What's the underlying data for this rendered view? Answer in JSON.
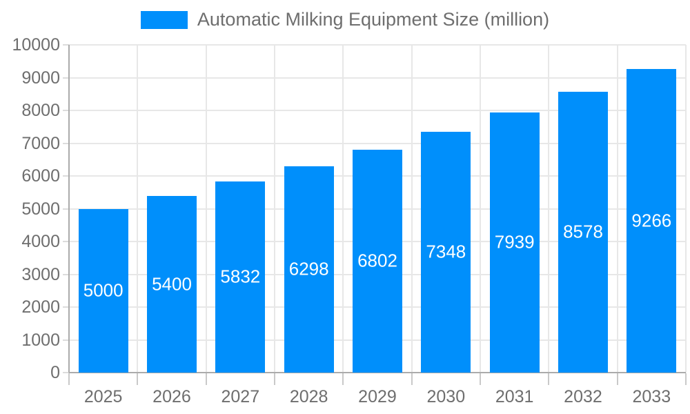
{
  "legend": {
    "label": "Automatic Milking Equipment Size (million)",
    "swatch_color": "#008FFB"
  },
  "chart_data": {
    "type": "bar",
    "title": "Automatic Milking Equipment Size (million)",
    "legend_position": "top",
    "categories": [
      "2025",
      "2026",
      "2027",
      "2028",
      "2029",
      "2030",
      "2031",
      "2032",
      "2033"
    ],
    "values": [
      5000,
      5400,
      5832,
      6298,
      6802,
      7348,
      7939,
      8578,
      9266
    ],
    "bar_labels": [
      "5000",
      "5400",
      "5832",
      "6298",
      "6802",
      "7348",
      "7939",
      "8578",
      "9266"
    ],
    "series_name": "Automatic Milking Equipment Size (million)",
    "xlabel": "",
    "ylabel": "",
    "ylim": [
      0,
      10000
    ],
    "y_tick_step": 1000,
    "y_tick_labels": [
      "0",
      "1000",
      "2000",
      "3000",
      "4000",
      "5000",
      "6000",
      "7000",
      "8000",
      "9000",
      "10000"
    ],
    "grid": true,
    "colors": {
      "bar": "#008FFB",
      "bar_label": "#FFFFFF",
      "axis_label": "#6E6E6E",
      "gridline": "#E7E7E7",
      "axis_line": "#ABABAB",
      "x_tick": "#C9C9C9",
      "y_tick": "#DCDCDC",
      "background": "#FFFFFF"
    }
  }
}
